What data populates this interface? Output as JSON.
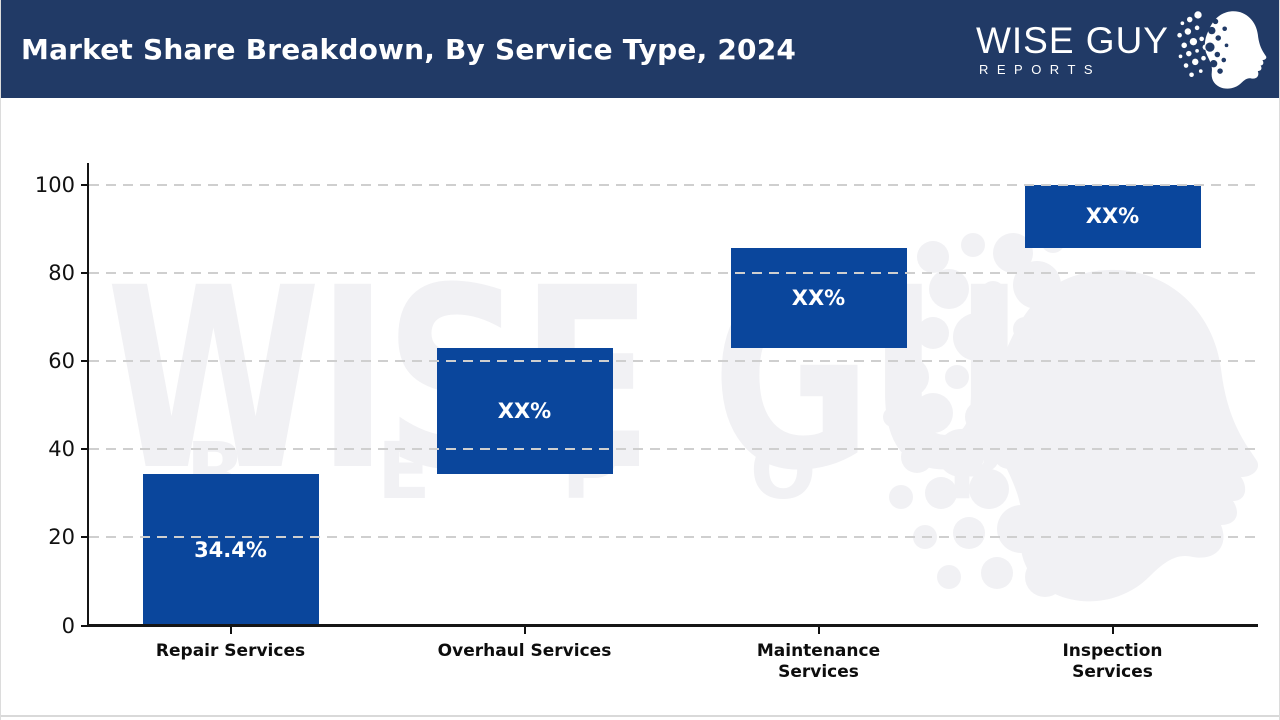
{
  "header": {
    "title": "Market Share Breakdown, By Service Type, 2024",
    "bg_color": "#213a66",
    "logo": {
      "line1": "WISE GUY",
      "line2": "REPORTS"
    }
  },
  "watermark": {
    "line1": "WISE GUY",
    "line2": "R E P O R T S",
    "color": "#f1f1f4"
  },
  "chart_data": {
    "type": "bar",
    "variant": "waterfall-floating-bars",
    "title": "Market Share Breakdown, By Service Type, 2024",
    "categories": [
      "Repair Services",
      "Overhaul Services",
      "Maintenance Services",
      "Inspection Services"
    ],
    "series": [
      {
        "category": "Repair Services",
        "label": "34.4%",
        "start": 0,
        "end": 34.4
      },
      {
        "category": "Overhaul Services",
        "label": "XX%",
        "start": 34.4,
        "end": 63
      },
      {
        "category": "Maintenance Services",
        "label": "XX%",
        "start": 63,
        "end": 85.5
      },
      {
        "category": "Inspection Services",
        "label": "XX%",
        "start": 85.5,
        "end": 100
      }
    ],
    "yticks": [
      0,
      20,
      40,
      60,
      80,
      100
    ],
    "ylim": [
      0,
      107
    ],
    "xlabel": "",
    "ylabel": "",
    "grid": "dashed-horizontal-over-bars",
    "legend": "none",
    "bar_color": "#0a469c",
    "gridline_color": "#cfcfcf"
  }
}
